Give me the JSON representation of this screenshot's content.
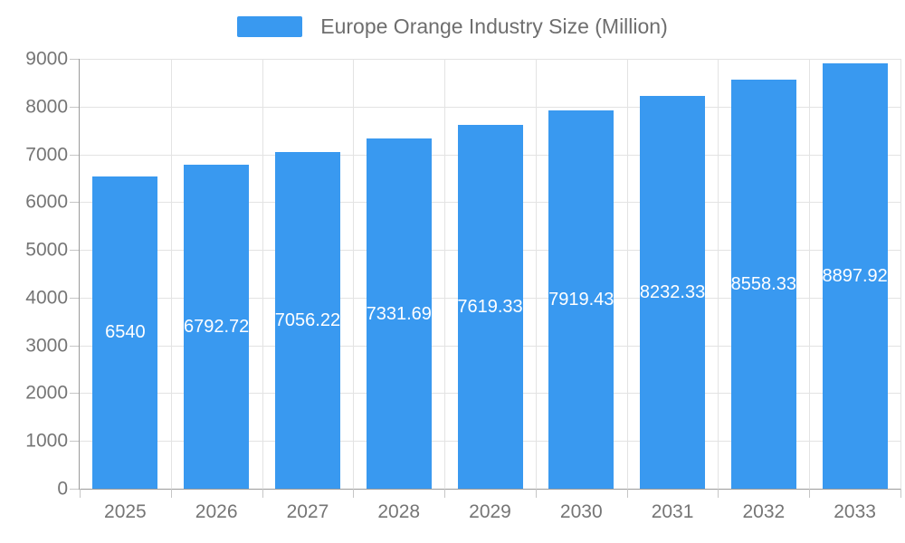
{
  "legend": {
    "label": "Europe Orange Industry Size (Million)"
  },
  "chart_data": {
    "type": "bar",
    "title": "Europe Orange Industry Size (Million)",
    "xlabel": "",
    "ylabel": "",
    "categories": [
      "2025",
      "2026",
      "2027",
      "2028",
      "2029",
      "2030",
      "2031",
      "2032",
      "2033"
    ],
    "values": [
      6540,
      6792.72,
      7056.22,
      7331.69,
      7619.33,
      7919.43,
      8232.33,
      8558.33,
      8897.92
    ],
    "value_labels": [
      "6540",
      "6792.72",
      "7056.22",
      "7331.69",
      "7619.33",
      "7919.43",
      "8232.33",
      "8558.33",
      "8897.92"
    ],
    "ylim": [
      0,
      9000
    ],
    "yticks": [
      0,
      1000,
      2000,
      3000,
      4000,
      5000,
      6000,
      7000,
      8000,
      9000
    ],
    "grid": "on",
    "legend_position": "top-center",
    "value_label_position": "inside-center"
  },
  "colors": {
    "bar": "#3999F0",
    "legend_text": "#6e6e6e",
    "axis_label": "#757575",
    "axis_line": "#9a9a9a",
    "gridline": "#e3e3e3",
    "tick": "#c6c6c6",
    "value_label": "#ffffff"
  }
}
